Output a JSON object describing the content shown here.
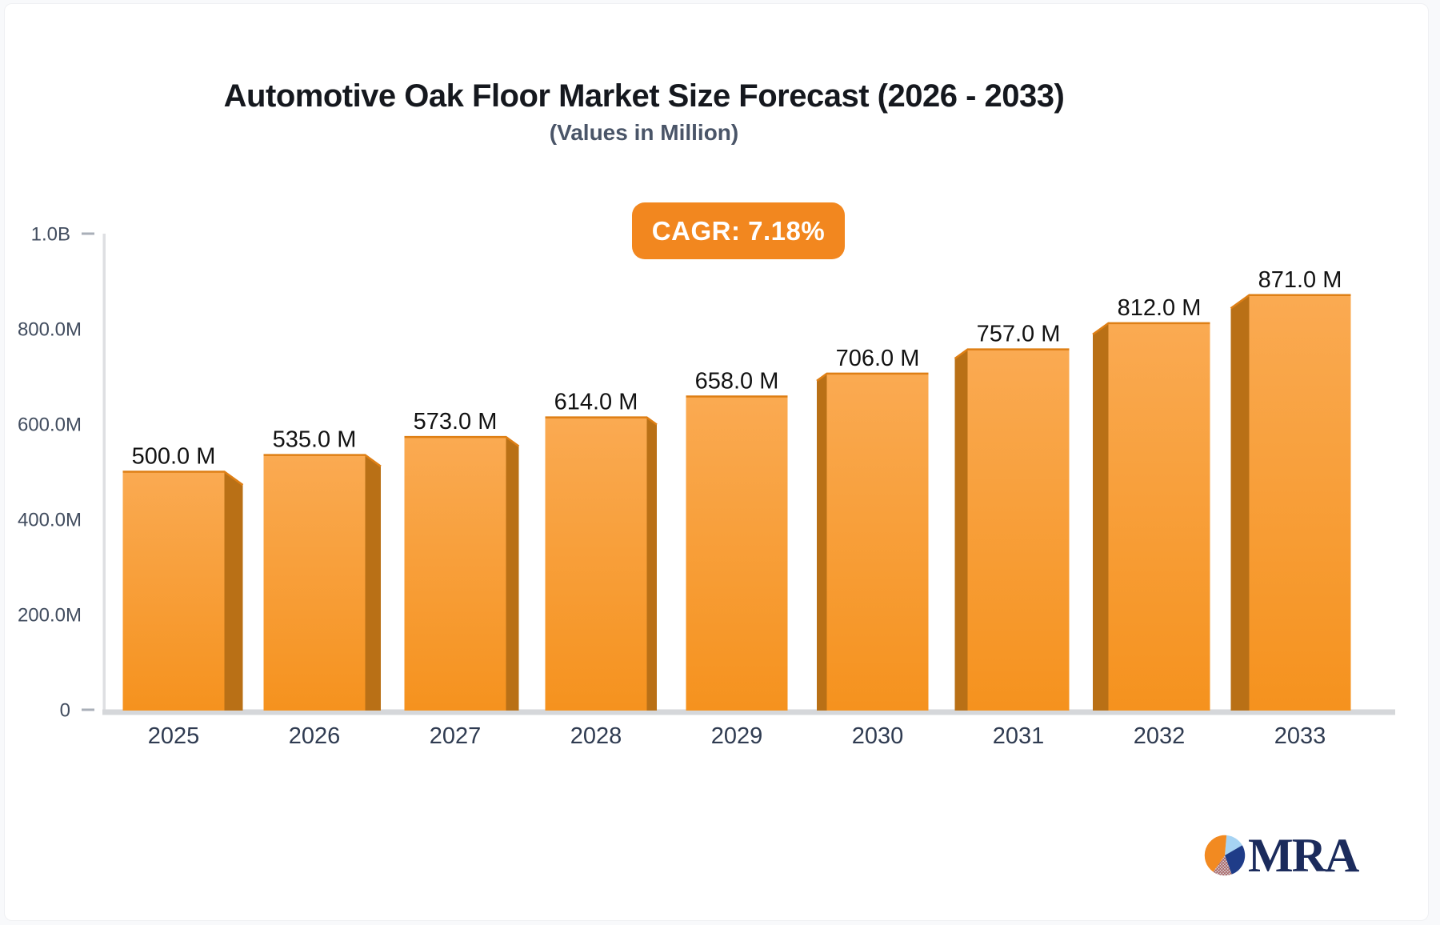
{
  "page": {
    "title": "Automotive Oak Floor Market Size Forecast (2026 - 2033)",
    "subtitle": "(Values in Million)",
    "cagr_badge": "CAGR: 7.18%",
    "logo_text": "MRA"
  },
  "chart_data": {
    "type": "bar",
    "title": "Automotive Oak Floor Market Size Forecast (2026 - 2033)",
    "subtitle": "(Values in Million)",
    "unit": "Million",
    "cagr_percent": 7.18,
    "categories": [
      "2025",
      "2026",
      "2027",
      "2028",
      "2029",
      "2030",
      "2031",
      "2032",
      "2033"
    ],
    "values": [
      500.0,
      535.0,
      573.0,
      614.0,
      658.0,
      706.0,
      757.0,
      812.0,
      871.0
    ],
    "bar_labels": [
      "500.0 M",
      "535.0 M",
      "573.0 M",
      "614.0 M",
      "658.0 M",
      "706.0 M",
      "757.0 M",
      "812.0 M",
      "871.0 M"
    ],
    "y_ticks": [
      {
        "value": 0,
        "label": "0"
      },
      {
        "value": 200,
        "label": "200.0M"
      },
      {
        "value": 400,
        "label": "400.0M"
      },
      {
        "value": 600,
        "label": "600.0M"
      },
      {
        "value": 800,
        "label": "800.0M"
      },
      {
        "value": 1000,
        "label": "1.0B"
      }
    ],
    "ylim": [
      0,
      1000
    ],
    "xlabel": "",
    "ylabel": "",
    "legend_position": "none",
    "grid": false
  },
  "colors": {
    "page_bg": "#F8F9FB",
    "card_bg": "#FFFFFF",
    "title": "#15181E",
    "subtitle": "#4A5568",
    "badge_bg": "#F2871F",
    "badge_text": "#FFFFFF",
    "bar_face_top": "#FAAA52",
    "bar_face_bottom": "#F5921E",
    "bar_side": "#B97016",
    "bar_top_edge": "#DE7F15",
    "axis_line": "#DEDFE2",
    "baseline": "#D5D7DA",
    "tick": "#A9AFB8",
    "y_label": "#424D5F",
    "x_label": "#2F3B51",
    "value_label": "#121212",
    "logo_navy": "#1B2B5C",
    "logo_orange": "#F28A21",
    "logo_lightblue": "#A6D3F3",
    "logo_hatch_line": "#A04848",
    "logo_hatch_bg": "#D8DBDF"
  }
}
